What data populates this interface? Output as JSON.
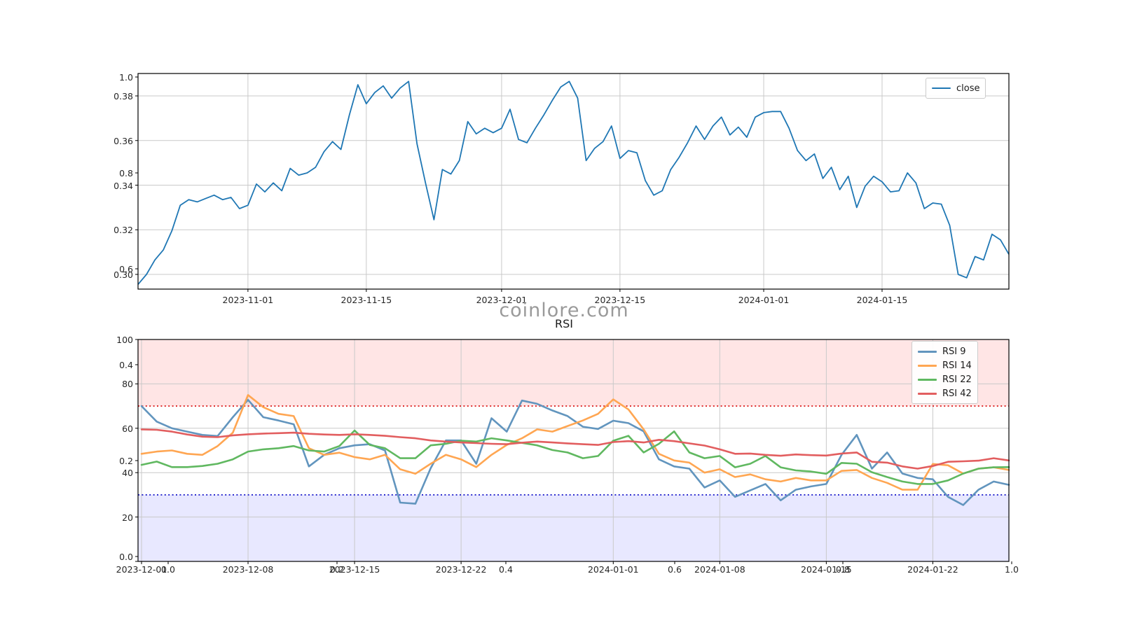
{
  "watermark": "coinlore.com",
  "colors": {
    "close_line": "#1f77b4",
    "rsi9": "#6295be",
    "rsi14": "#ffa652",
    "rsi22": "#60b860",
    "rsi42": "#e25e5f",
    "overbought_line": "#dd2222",
    "oversold_line": "#2222cc",
    "overbought_band": "rgba(255,0,0,0.10)",
    "oversold_band": "rgba(0,0,255,0.09)",
    "grid": "#c9c9c9",
    "spine": "#000000"
  },
  "chart_data": [
    {
      "type": "line",
      "title": "",
      "xlabel": "",
      "ylabel": "",
      "legend_position": "upper right",
      "grid": true,
      "start_date": "2023-10-19",
      "frequency": "daily",
      "x_tick_labels": [
        "2023-11-01",
        "2023-11-15",
        "2023-12-01",
        "2023-12-15",
        "2024-01-01",
        "2024-01-15"
      ],
      "x_tick_day_offsets": [
        13,
        27,
        43,
        57,
        74,
        88
      ],
      "y_tick_labels": [
        "0.38",
        "0.36",
        "0.34",
        "0.32",
        "0.30"
      ],
      "y_tick_values": [
        0.38,
        0.36,
        0.34,
        0.32,
        0.3
      ],
      "ylim": [
        0.2935,
        0.3905
      ],
      "overlay_axis_y_ticks": [
        "1.0",
        "0.8",
        "0.6"
      ],
      "series": [
        {
          "name": "close",
          "values": [
            0.2955,
            0.3,
            0.3065,
            0.311,
            0.3195,
            0.331,
            0.3335,
            0.3325,
            0.334,
            0.3355,
            0.3335,
            0.3345,
            0.3295,
            0.331,
            0.3405,
            0.337,
            0.341,
            0.3375,
            0.3475,
            0.3445,
            0.3455,
            0.348,
            0.355,
            0.3595,
            0.356,
            0.3715,
            0.385,
            0.3765,
            0.3815,
            0.3845,
            0.379,
            0.3835,
            0.3865,
            0.3585,
            0.341,
            0.3245,
            0.347,
            0.345,
            0.351,
            0.3685,
            0.363,
            0.3655,
            0.3635,
            0.3655,
            0.374,
            0.3605,
            0.359,
            0.3655,
            0.3715,
            0.378,
            0.384,
            0.3865,
            0.379,
            0.351,
            0.3565,
            0.3595,
            0.3665,
            0.352,
            0.3555,
            0.3545,
            0.342,
            0.3355,
            0.3375,
            0.347,
            0.3525,
            0.359,
            0.3665,
            0.3605,
            0.3665,
            0.3705,
            0.3625,
            0.366,
            0.3615,
            0.3705,
            0.3725,
            0.373,
            0.373,
            0.3655,
            0.3555,
            0.351,
            0.354,
            0.343,
            0.348,
            0.338,
            0.344,
            0.33,
            0.3395,
            0.344,
            0.3415,
            0.337,
            0.3375,
            0.3455,
            0.341,
            0.3295,
            0.332,
            0.3315,
            0.322,
            0.3,
            0.2985,
            0.308,
            0.3065,
            0.318,
            0.3155,
            0.309
          ]
        }
      ]
    },
    {
      "type": "line",
      "title": "RSI",
      "xlabel": "",
      "ylabel": "",
      "legend_position": "upper right",
      "grid": true,
      "start_date": "2023-12-01",
      "frequency": "daily",
      "x_tick_labels": [
        "2023-12-01",
        "2023-12-08",
        "2023-12-15",
        "2023-12-22",
        "2024-01-01",
        "2024-01-08",
        "2024-01-15",
        "2024-01-22"
      ],
      "x_tick_day_offsets": [
        0,
        7,
        14,
        21,
        31,
        38,
        45,
        52
      ],
      "y_tick_labels": [
        "100",
        "80",
        "60",
        "40",
        "20",
        "0.0"
      ],
      "y_tick_values": [
        100,
        80,
        60,
        40,
        20,
        0
      ],
      "ylim": [
        0,
        100
      ],
      "overbought_level": 70,
      "oversold_level": 30,
      "overlay_axis_x_ticks": [
        "0.0",
        "0.2",
        "0.4",
        "0.6",
        "0.8",
        "1.0"
      ],
      "overlay_axis_y_ticks": [
        "0.4",
        "0.2",
        "0.0"
      ],
      "series": [
        {
          "name": "RSI 9",
          "values": [
            70,
            63,
            60,
            58.5,
            57,
            56.5,
            65,
            72.8,
            65,
            63.5,
            61.8,
            42.8,
            48,
            51,
            52.3,
            52.8,
            50,
            26.5,
            26,
            42,
            54.5,
            54.5,
            44,
            64.5,
            58.5,
            72.5,
            71,
            68,
            65.5,
            60.7,
            59.7,
            63.4,
            62.3,
            58.6,
            46,
            42.8,
            41.8,
            33.3,
            36.5,
            29.1,
            32,
            34.9,
            27.5,
            32.3,
            33.8,
            34.9,
            48,
            57,
            41.8,
            49.1,
            39.6,
            37.6,
            37,
            29.1,
            25.4,
            32.3,
            36,
            34.5
          ]
        },
        {
          "name": "RSI 14",
          "values": [
            48.5,
            49.5,
            50,
            48.5,
            48,
            52,
            58,
            75,
            69.5,
            66.5,
            65.5,
            51,
            48,
            49,
            47,
            46,
            48,
            41.5,
            39.5,
            44,
            48,
            46,
            42.5,
            48,
            52.5,
            55.5,
            59.5,
            58.5,
            61,
            63.5,
            66.5,
            73,
            68.5,
            59.5,
            48.5,
            45.5,
            44.5,
            40,
            41.5,
            38,
            39.2,
            37,
            36,
            37.6,
            36.5,
            36.5,
            40.8,
            41.2,
            37.6,
            35.4,
            32.3,
            32.3,
            43.9,
            43.3,
            39.6,
            41.8,
            42.4,
            41.2
          ]
        },
        {
          "name": "RSI 22",
          "values": [
            43.5,
            45,
            42.5,
            42.5,
            43,
            44,
            46,
            49.5,
            50.5,
            51,
            52,
            50,
            49.5,
            52,
            59,
            52.5,
            51,
            46.5,
            46.5,
            52.3,
            53,
            54.4,
            54,
            55.5,
            54.5,
            53.4,
            52.3,
            50.2,
            49.1,
            46.5,
            47.5,
            54.4,
            56.6,
            49.1,
            53,
            58.6,
            49.1,
            46.5,
            47.5,
            42.4,
            44,
            47.5,
            42.4,
            41,
            40.5,
            39.5,
            44.4,
            44,
            40.2,
            38,
            36,
            34.9,
            34.9,
            36.5,
            39.6,
            41.8,
            42.4,
            42.5
          ]
        },
        {
          "name": "RSI 42",
          "values": [
            59.5,
            59.3,
            58.5,
            57.2,
            56.2,
            56,
            56.8,
            57.3,
            57.6,
            57.8,
            58,
            57.5,
            57.2,
            57,
            57.3,
            57,
            56.6,
            56,
            55.5,
            54.5,
            54,
            53.6,
            53.3,
            53,
            52.8,
            53.5,
            54,
            53.6,
            53.2,
            52.8,
            52.5,
            53.8,
            54.2,
            53.6,
            54.8,
            54.2,
            53.2,
            52.2,
            50.5,
            48.5,
            48.6,
            48,
            47.6,
            48.2,
            47.9,
            47.7,
            48.6,
            49.1,
            44.9,
            44.5,
            42.8,
            41.8,
            43,
            44.9,
            45.1,
            45.4,
            46.5,
            45.5
          ]
        }
      ]
    }
  ]
}
